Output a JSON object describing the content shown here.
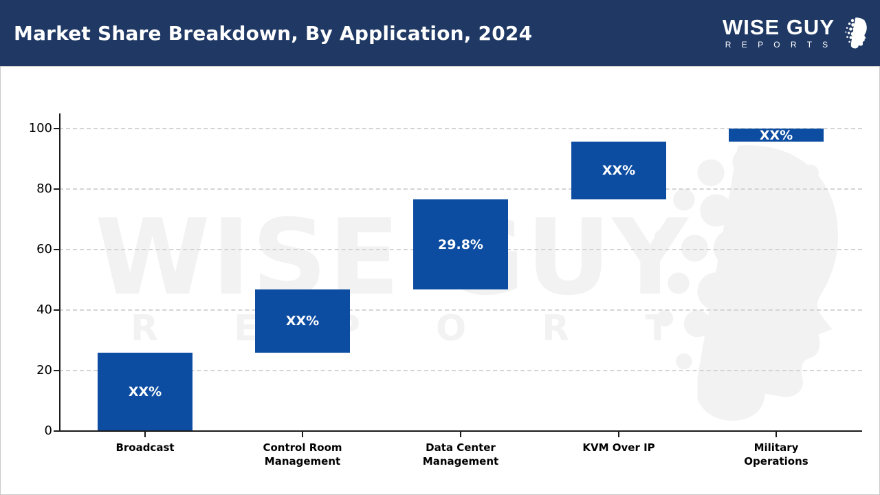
{
  "header": {
    "title": "Market Share Breakdown, By Application, 2024",
    "logo": {
      "name": "WISE GUY",
      "tagline": "R E P O R T S"
    }
  },
  "watermark": {
    "name": "WISE GUY",
    "tagline": "R E P O R T S"
  },
  "colors": {
    "header_bg": "#1f3864",
    "bar": "#0d4da1",
    "grid": "#d4d4d4",
    "watermark": "#f2f2f2",
    "axis": "#1a1a1a"
  },
  "chart_data": {
    "type": "bar",
    "subtype": "floating-waterfall",
    "title": "Market Share Breakdown, By Application, 2024",
    "categories": [
      "Broadcast",
      "Control Room\nManagement",
      "Data Center\nManagement",
      "KVM Over IP",
      "Military\nOperations"
    ],
    "segments": [
      {
        "category": "Broadcast",
        "start": 0,
        "end": 25.8,
        "label": "XX%"
      },
      {
        "category": "Control Room Management",
        "start": 25.8,
        "end": 46.8,
        "label": "XX%"
      },
      {
        "category": "Data Center Management",
        "start": 46.8,
        "end": 76.6,
        "label": "29.8%"
      },
      {
        "category": "KVM Over IP",
        "start": 76.6,
        "end": 95.6,
        "label": "XX%"
      },
      {
        "category": "Military Operations",
        "start": 95.6,
        "end": 100,
        "label": "XX%"
      }
    ],
    "yticks": [
      0,
      20,
      40,
      60,
      80,
      100
    ],
    "ylim": [
      0,
      105
    ],
    "xlabel": "",
    "ylabel": "",
    "grid": "horizontal-dashed",
    "legend": "none",
    "bar_label_color": "#ffffff"
  }
}
